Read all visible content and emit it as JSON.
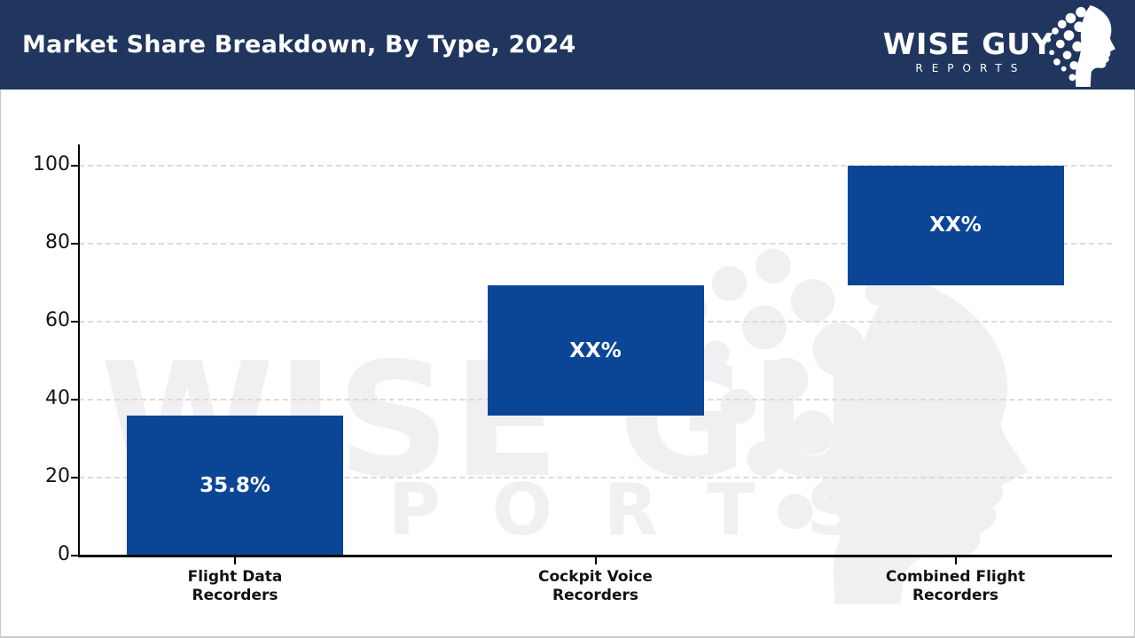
{
  "header": {
    "title": "Market Share Breakdown, By Type, 2024",
    "logo": {
      "line1": "WISE GUY",
      "line2": "REPORTS"
    }
  },
  "watermark": {
    "line1": "WISE GUY",
    "line2": "REPORTS"
  },
  "colors": {
    "header_bg": "#20365f",
    "bar": "#0b4596",
    "bar_label": "#ffffff",
    "watermark": "#f0f0f2",
    "grid": "#dbdbdb",
    "axis": "#000000"
  },
  "chart_data": {
    "type": "bar",
    "subtype": "waterfall",
    "title": "Market Share Breakdown, By Type, 2024",
    "categories": [
      [
        "Flight Data",
        "Recorders"
      ],
      [
        "Cockpit Voice",
        "Recorders"
      ],
      [
        "Combined Flight",
        "Recorders"
      ]
    ],
    "segments": [
      {
        "category": "Flight Data Recorders",
        "start": 0,
        "end": 35.8,
        "label": "35.8%"
      },
      {
        "category": "Cockpit Voice Recorders",
        "start": 35.8,
        "end": 69.4,
        "label": "XX%"
      },
      {
        "category": "Combined Flight Recorders",
        "start": 69.4,
        "end": 100,
        "label": "XX%"
      }
    ],
    "ylim": [
      0,
      100
    ],
    "yticks": [
      0,
      20,
      40,
      60,
      80,
      100
    ],
    "xlabel": "",
    "ylabel": "",
    "grid": "dashed-horizontal",
    "legend": "none"
  }
}
